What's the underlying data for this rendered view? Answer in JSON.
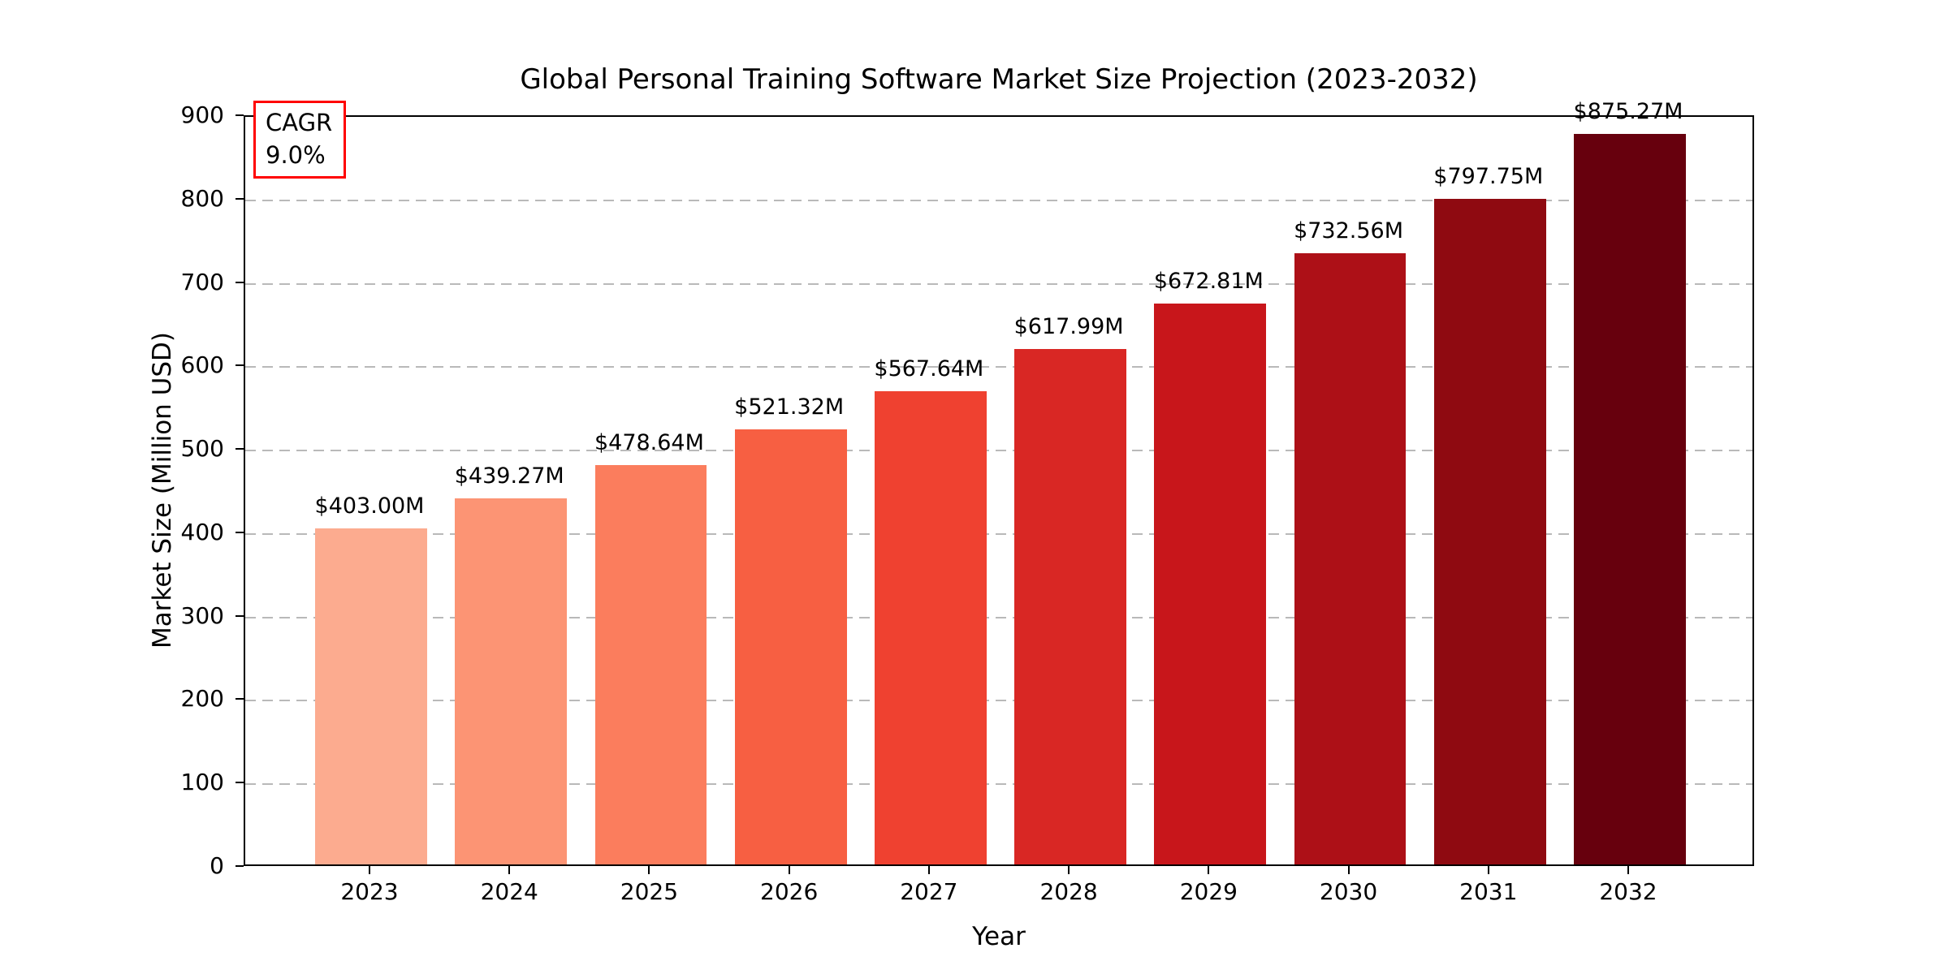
{
  "chart_data": {
    "type": "bar",
    "title": "Global Personal Training Software Market Size Projection (2023-2032)",
    "xlabel": "Year",
    "ylabel": "Market Size (Million USD)",
    "categories": [
      "2023",
      "2024",
      "2025",
      "2026",
      "2027",
      "2028",
      "2029",
      "2030",
      "2031",
      "2032"
    ],
    "values": [
      403.0,
      439.27,
      478.64,
      521.32,
      567.64,
      617.99,
      672.81,
      732.56,
      797.75,
      875.27
    ],
    "bar_labels": [
      "$403.00M",
      "$439.27M",
      "$478.64M",
      "$521.32M",
      "$567.64M",
      "$617.99M",
      "$672.81M",
      "$732.56M",
      "$797.75M",
      "$875.27M"
    ],
    "bar_colors": [
      "#FCAB8F",
      "#FC9474",
      "#FB7D5D",
      "#F75F42",
      "#EF4130",
      "#D92724",
      "#C8161B",
      "#AD1017",
      "#8F0A11",
      "#67000D"
    ],
    "ylim": [
      0,
      900
    ],
    "yticks": [
      0,
      100,
      200,
      300,
      400,
      500,
      600,
      700,
      800,
      900
    ],
    "grid": "horizontal-dashed",
    "gridline_color": "#b9b9b9",
    "legend": "none",
    "annotation": {
      "line1": "CAGR",
      "line2": "9.0%",
      "box_color": "#FF0000"
    }
  }
}
